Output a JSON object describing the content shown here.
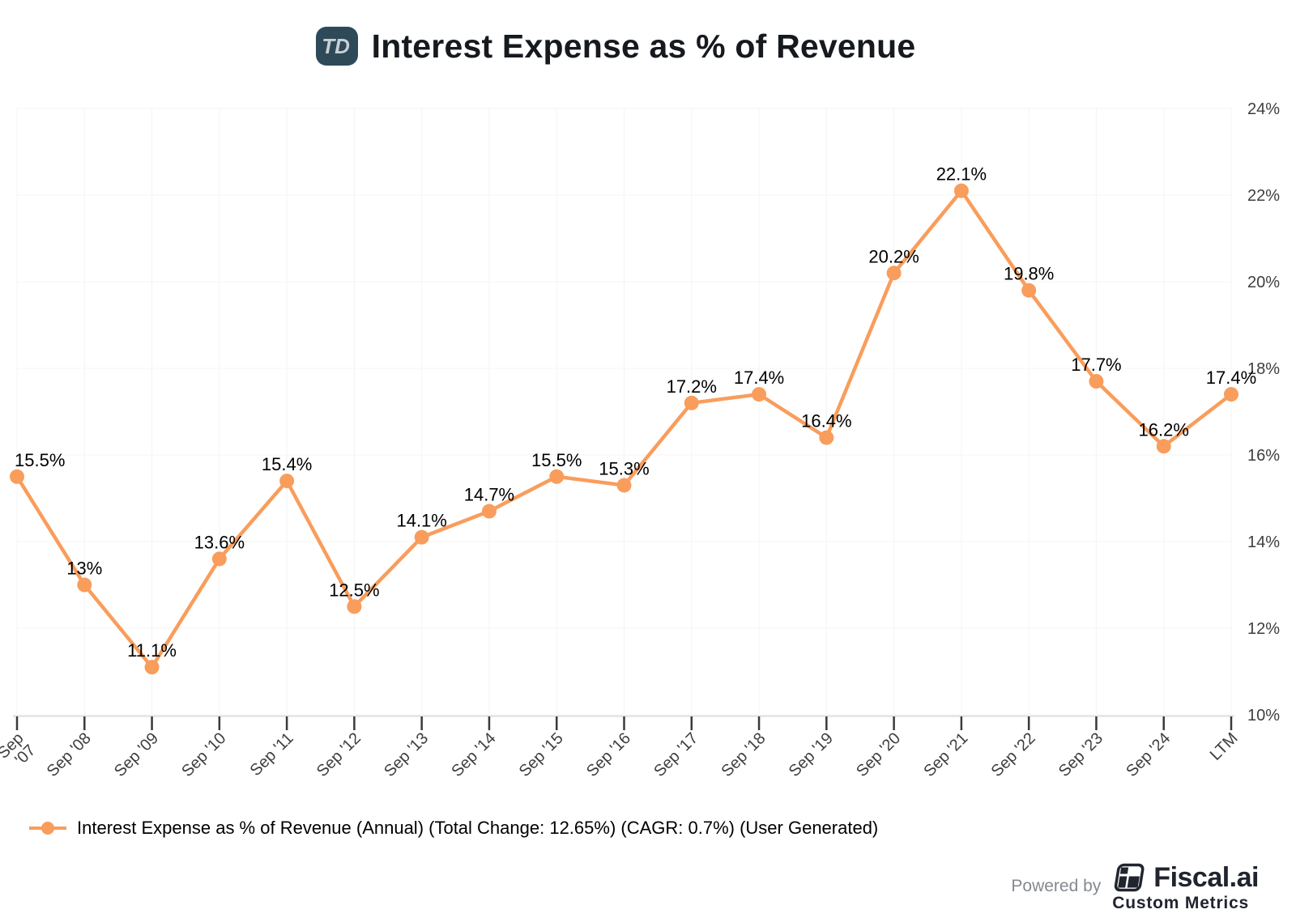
{
  "header": {
    "badge": "TD",
    "badge_color": "#2E4A59",
    "badge_text_color": "#C9CFD6",
    "title": "Interest Expense as % of Revenue"
  },
  "chart_data": {
    "type": "line",
    "title": "Interest Expense as % of Revenue",
    "categories": [
      "Sep '07",
      "Sep '08",
      "Sep '09",
      "Sep '10",
      "Sep '11",
      "Sep '12",
      "Sep '13",
      "Sep '14",
      "Sep '15",
      "Sep '16",
      "Sep '17",
      "Sep '18",
      "Sep '19",
      "Sep '20",
      "Sep '21",
      "Sep '22",
      "Sep '23",
      "Sep '24",
      "LTM"
    ],
    "values": [
      15.5,
      13,
      11.1,
      13.6,
      15.4,
      12.5,
      14.1,
      14.7,
      15.5,
      15.3,
      17.2,
      17.4,
      16.4,
      20.2,
      22.1,
      19.8,
      17.7,
      16.2,
      17.4
    ],
    "labels": [
      "15.5%",
      "13%",
      "11.1%",
      "13.6%",
      "15.4%",
      "12.5%",
      "14.1%",
      "14.7%",
      "15.5%",
      "15.3%",
      "17.2%",
      "17.4%",
      "16.4%",
      "20.2%",
      "22.1%",
      "19.8%",
      "17.7%",
      "16.2%",
      "17.4%"
    ],
    "xlabel": "",
    "ylabel": "",
    "ylim": [
      10,
      24
    ],
    "y_tick_values": [
      10,
      12,
      14,
      16,
      18,
      20,
      22,
      24
    ],
    "y_ticks": [
      "10%",
      "12%",
      "14%",
      "16%",
      "18%",
      "20%",
      "22%",
      "24%"
    ],
    "grid": true,
    "legend_position": "bottom-left",
    "series_color": "#F99D5C",
    "grid_color": "#F4F4F4",
    "axis_line_color": "#E7E7E7",
    "tick_color": "#3A3A3A",
    "axis_label_color": "#3E3E3E",
    "data_label_color": "#000000"
  },
  "legend": {
    "label": "Interest Expense as % of Revenue (Annual) (Total Change: 12.65%) (CAGR: 0.7%) (User Generated)"
  },
  "footer": {
    "powered_by": "Powered by",
    "brand": "Fiscal.ai",
    "sub_brand": "Custom Metrics",
    "brand_color": "#20242E"
  }
}
